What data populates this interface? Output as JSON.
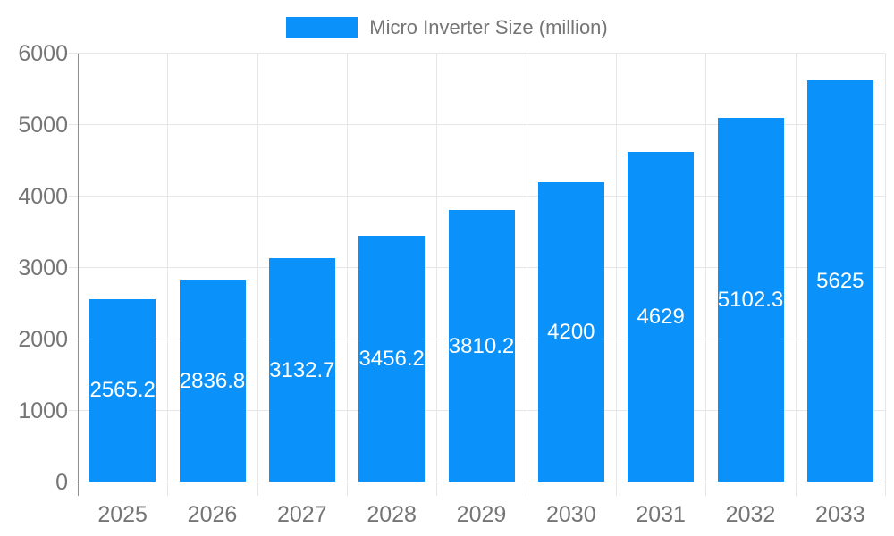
{
  "legend": {
    "label": "Micro Inverter Size (million)"
  },
  "colors": {
    "bar": "#0b91fa",
    "bar_value_label": "#ffffff",
    "grid": "#e6e6e6",
    "axis_line": "#8f8f8f",
    "baseline": "#b3b3b3",
    "tick_label": "#757575",
    "background": "#ffffff"
  },
  "chart_data": {
    "type": "bar",
    "title": "Micro Inverter Size (million)",
    "categories": [
      "2025",
      "2026",
      "2027",
      "2028",
      "2029",
      "2030",
      "2031",
      "2032",
      "2033"
    ],
    "series": [
      {
        "name": "Micro Inverter Size (million)",
        "values": [
          2565.2,
          2836.8,
          3132.7,
          3456.2,
          3810.2,
          4200,
          4629,
          5102.3,
          5625
        ]
      }
    ],
    "value_labels": [
      "2565.2",
      "2836.8",
      "3132.7",
      "3456.2",
      "3810.2",
      "4200",
      "4629",
      "5102.3",
      "5625"
    ],
    "xlabel": "",
    "ylabel": "",
    "ylim": [
      0,
      6000
    ],
    "yticks": [
      0,
      1000,
      2000,
      3000,
      4000,
      5000,
      6000
    ],
    "grid": true,
    "legend_position": "top-center",
    "value_label_position": "inside-center"
  }
}
